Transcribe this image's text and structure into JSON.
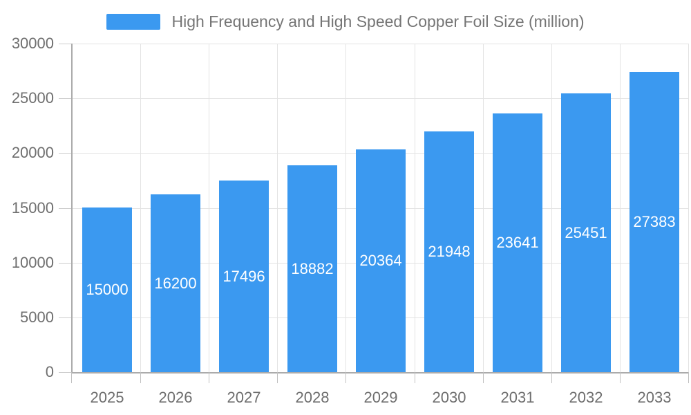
{
  "chart_data": {
    "type": "bar",
    "legend": "High Frequency and High Speed Copper Foil Size (million)",
    "legend_position": "top",
    "categories": [
      "2025",
      "2026",
      "2027",
      "2028",
      "2029",
      "2030",
      "2031",
      "2032",
      "2033"
    ],
    "values": [
      15000,
      16200,
      17496,
      18882,
      20364,
      21948,
      23641,
      25451,
      27383
    ],
    "title": "",
    "xlabel": "",
    "ylabel": "",
    "ylim": [
      0,
      30000
    ],
    "yticks": [
      0,
      5000,
      10000,
      15000,
      20000,
      25000,
      30000
    ],
    "grid": true,
    "bar_label_position": "inside-center"
  },
  "colors": {
    "bar": "#3b99f0",
    "bar_value_text": "#ffffff",
    "axis_line": "#ababab",
    "gridline": "#e3e3e3",
    "axis_text": "#6e6e6e",
    "legend_text": "#757575",
    "background": "#ffffff"
  }
}
